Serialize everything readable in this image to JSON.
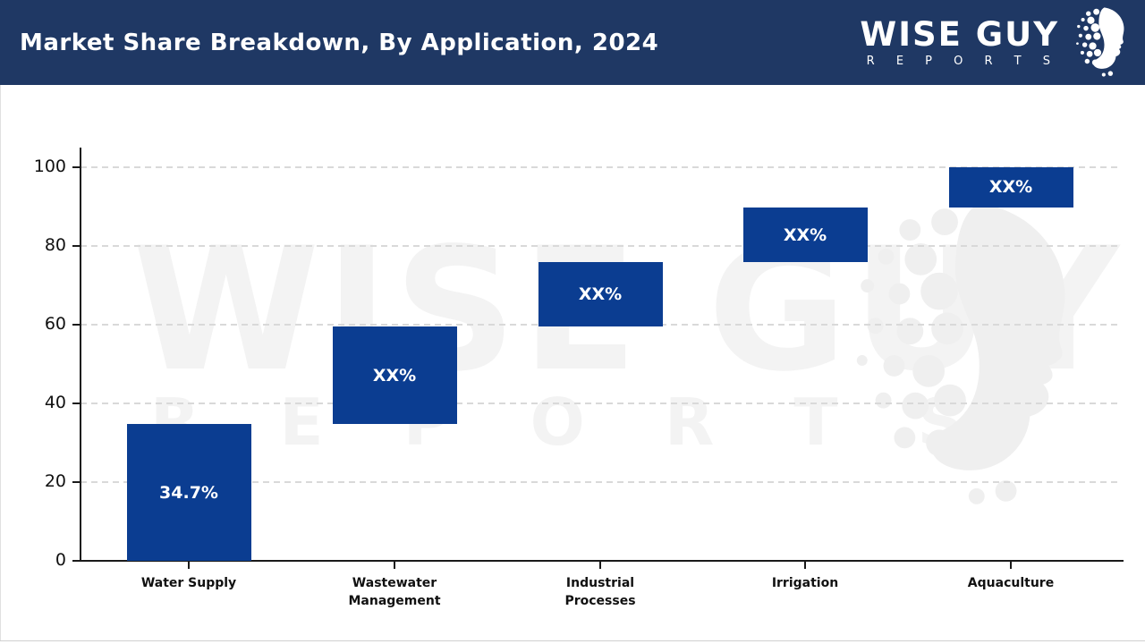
{
  "header": {
    "title": "Market Share Breakdown, By Application, 2024",
    "logo": {
      "line1": "WISE GUY",
      "line2": "REPORTS"
    }
  },
  "watermark": {
    "line1": "WISE GUY",
    "line2": "REPORTS",
    "face": "dotted-face-profile"
  },
  "colors": {
    "header_bg": "#1f3864",
    "bar": "#0b3d91",
    "bar_label": "#ffffff",
    "grid": "#d9d9d9",
    "axis": "#1a1a1a",
    "watermark": "#f3f3f3"
  },
  "chart_data": {
    "type": "bar",
    "variant": "waterfall",
    "title": "Market Share Breakdown, By Application, 2024",
    "xlabel": "",
    "ylabel": "",
    "ylim": [
      0,
      100
    ],
    "yticks": [
      0,
      20,
      40,
      60,
      80,
      100
    ],
    "grid": {
      "horizontal": true,
      "style": "dashed",
      "color": "#d9d9d9"
    },
    "legend": null,
    "bar_color": "#0b3d91",
    "categories": [
      "Water Supply",
      "Wastewater Management",
      "Industrial Processes",
      "Irrigation",
      "Aquaculture"
    ],
    "category_lines": [
      [
        "Water Supply"
      ],
      [
        "Wastewater",
        "Management"
      ],
      [
        "Industrial",
        "Processes"
      ],
      [
        "Irrigation"
      ],
      [
        "Aquaculture"
      ]
    ],
    "segments": [
      {
        "category": "Water Supply",
        "start": 0,
        "end": 34.7,
        "label": "34.7%"
      },
      {
        "category": "Wastewater Management",
        "start": 34.7,
        "end": 59.5,
        "label": "XX%"
      },
      {
        "category": "Industrial Processes",
        "start": 59.5,
        "end": 75.8,
        "label": "XX%"
      },
      {
        "category": "Irrigation",
        "start": 75.8,
        "end": 89.8,
        "label": "XX%"
      },
      {
        "category": "Aquaculture",
        "start": 89.8,
        "end": 100,
        "label": "XX%"
      }
    ]
  }
}
